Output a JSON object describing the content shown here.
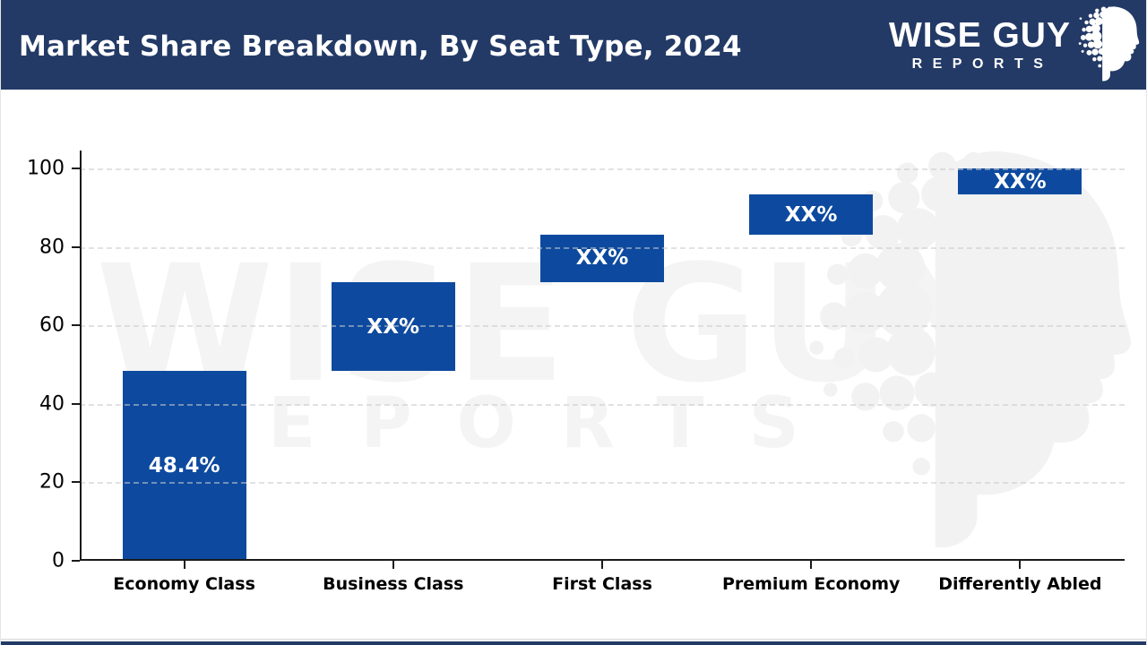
{
  "header": {
    "title": "Market Share Breakdown, By Seat Type, 2024",
    "logo": {
      "line1": "WISE GUY",
      "line2": "REPORTS"
    }
  },
  "watermark": {
    "line1": "WISE GUY",
    "line2": "REPORTS"
  },
  "theme": {
    "navy": "#233a66",
    "bar_blue": "#0d4a9f",
    "watermark_gray": "#f4f4f4",
    "grid_gray": "#cbcbcb"
  },
  "chart_data": {
    "type": "bar",
    "subtype": "waterfall-floating-bars",
    "title": "Market Share Breakdown, By Seat Type, 2024",
    "categories": [
      "Economy Class",
      "Business Class",
      "First Class",
      "Premium Economy",
      "Differently Abled"
    ],
    "segments": [
      {
        "category": "Economy Class",
        "start": 0,
        "end": 48.4,
        "label": "48.4%"
      },
      {
        "category": "Business Class",
        "start": 48.4,
        "end": 71.0,
        "label": "XX%"
      },
      {
        "category": "First Class",
        "start": 71.0,
        "end": 83.2,
        "label": "XX%"
      },
      {
        "category": "Premium Economy",
        "start": 83.2,
        "end": 93.3,
        "label": "XX%"
      },
      {
        "category": "Differently Abled",
        "start": 93.3,
        "end": 100.0,
        "label": "XX%"
      }
    ],
    "values": [
      48.4,
      22.6,
      12.2,
      10.1,
      6.7
    ],
    "yticks": [
      0,
      20,
      40,
      60,
      80,
      100
    ],
    "ylim": [
      0,
      104.6
    ],
    "xlabel": "",
    "ylabel": "",
    "grid": true,
    "grid_style": "dashed",
    "legend": "none",
    "bar_color": "#0d4a9f",
    "bar_label_color": "#ffffff"
  }
}
